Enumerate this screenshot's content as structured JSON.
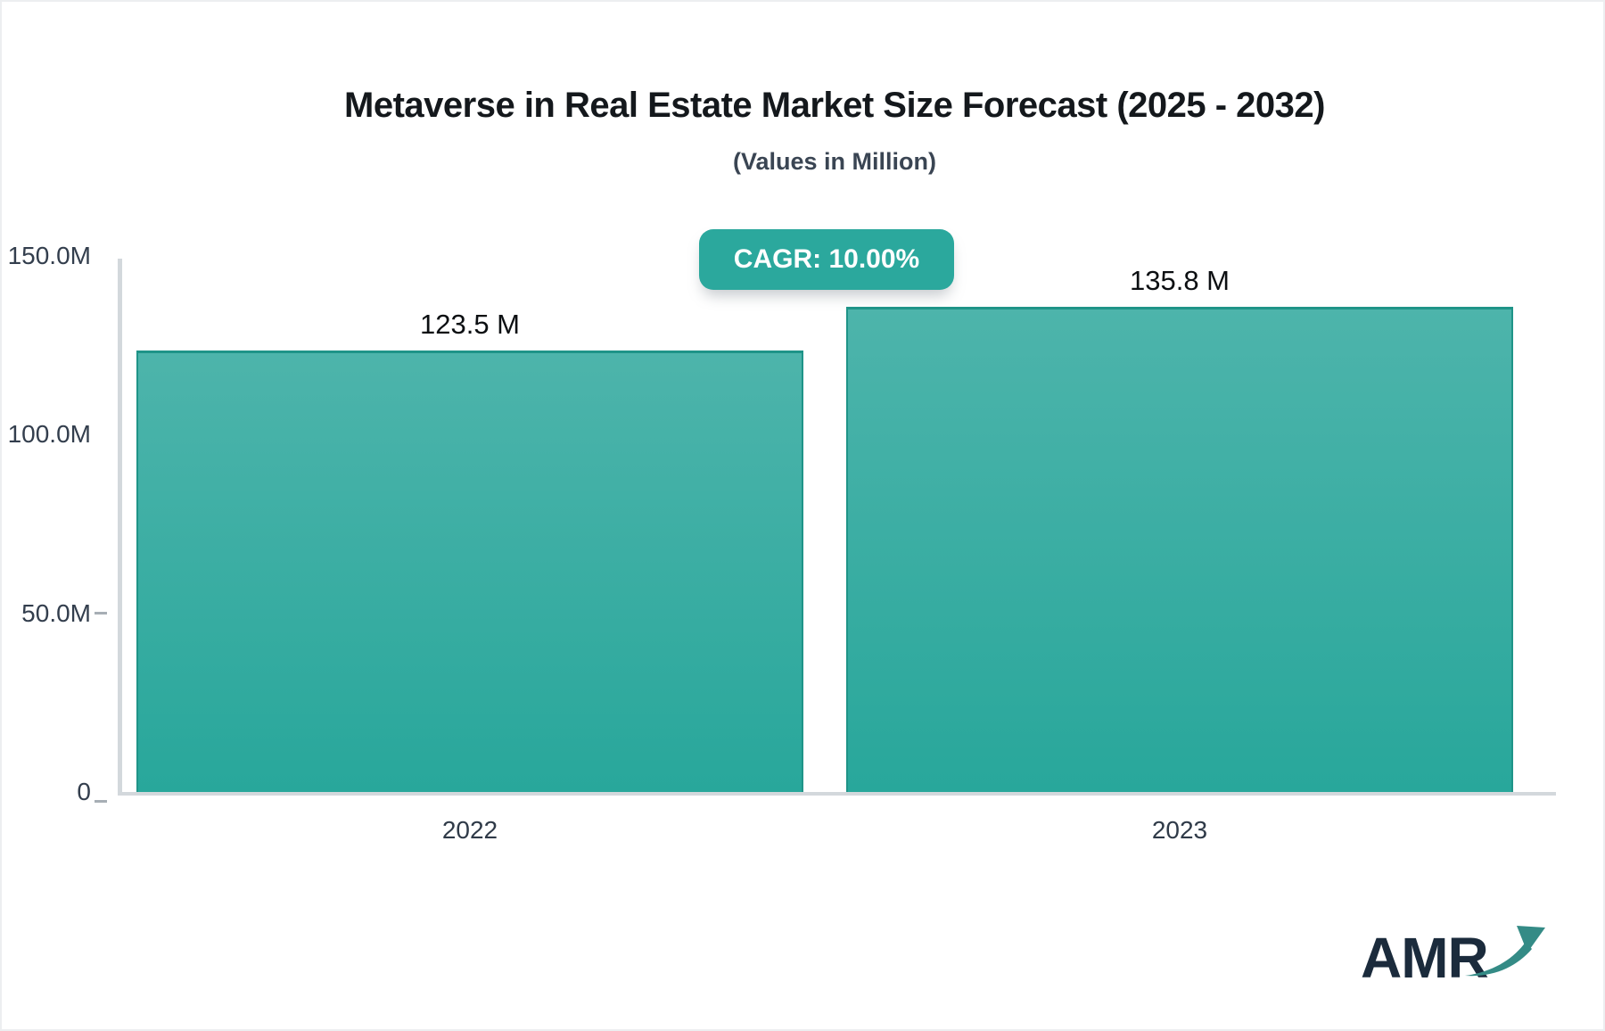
{
  "title": "Metaverse in Real Estate Market Size Forecast (2025 - 2032)",
  "subtitle": "(Values in Million)",
  "badge": {
    "label": "CAGR: 10.00%",
    "bg_color": "#2ba89d",
    "text_color": "#ffffff"
  },
  "logo": {
    "text": "AMR",
    "text_color": "#1b2b3c",
    "arrow_color": "#348b86"
  },
  "colors": {
    "bar_top": "#4db4ab",
    "bar_bottom": "#28a79b",
    "bar_border": "#1f9488",
    "axis_line": "#d3d8dc",
    "tick_text": "#333e4d"
  },
  "chart_data": {
    "type": "bar",
    "categories": [
      "2022",
      "2023"
    ],
    "values": [
      123.5,
      135.8
    ],
    "value_labels": [
      "123.5 M",
      "135.8 M"
    ],
    "title": "Metaverse in Real Estate Market Size Forecast (2025 - 2032)",
    "subtitle": "(Values in Million)",
    "annotation": "CAGR: 10.00%",
    "xlabel": "",
    "ylabel": "",
    "ylim": [
      0,
      150
    ],
    "yticks": [
      {
        "value": 150,
        "label": "150.0M",
        "dash": false
      },
      {
        "value": 100,
        "label": "100.0M",
        "dash": false
      },
      {
        "value": 50,
        "label": "50.0M",
        "dash": true
      },
      {
        "value": 0,
        "label": "0",
        "dash": true
      }
    ],
    "grid": false,
    "legend": false,
    "units": "Million"
  }
}
